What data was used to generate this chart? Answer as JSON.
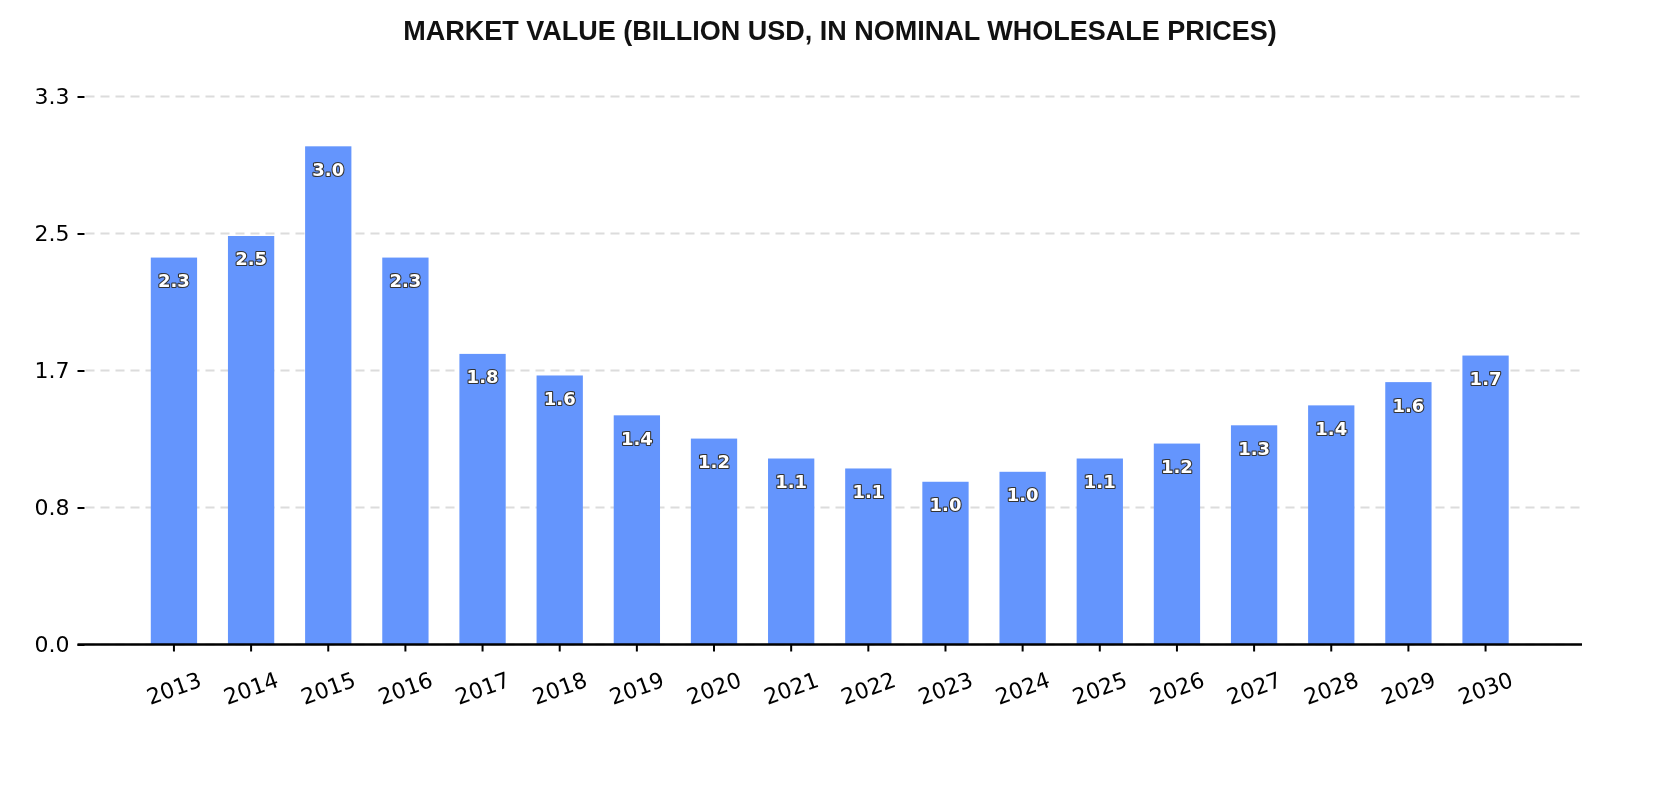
{
  "chart_data": {
    "type": "bar",
    "title": "MARKET VALUE (BILLION USD, IN NOMINAL WHOLESALE PRICES)",
    "categories": [
      "2013",
      "2014",
      "2015",
      "2016",
      "2017",
      "2018",
      "2019",
      "2020",
      "2021",
      "2022",
      "2023",
      "2024",
      "2025",
      "2026",
      "2027",
      "2028",
      "2029",
      "2030"
    ],
    "values": [
      2.33,
      2.46,
      3.0,
      2.33,
      1.75,
      1.62,
      1.38,
      1.24,
      1.12,
      1.06,
      0.98,
      1.04,
      1.12,
      1.21,
      1.32,
      1.44,
      1.58,
      1.74
    ],
    "value_labels": [
      "2.3",
      "2.5",
      "3.0",
      "2.3",
      "1.8",
      "1.6",
      "1.4",
      "1.2",
      "1.1",
      "1.1",
      "1.0",
      "1.0",
      "1.1",
      "1.2",
      "1.3",
      "1.4",
      "1.6",
      "1.7"
    ],
    "color": "#6495fd",
    "ylim": [
      0,
      3.3
    ],
    "yticks": [
      {
        "value": 0,
        "label": "0.0"
      },
      {
        "value": 0.825,
        "label": "0.8"
      },
      {
        "value": 1.65,
        "label": "1.7"
      },
      {
        "value": 2.475,
        "label": "2.5"
      },
      3.3
    ],
    "grid": "y"
  }
}
